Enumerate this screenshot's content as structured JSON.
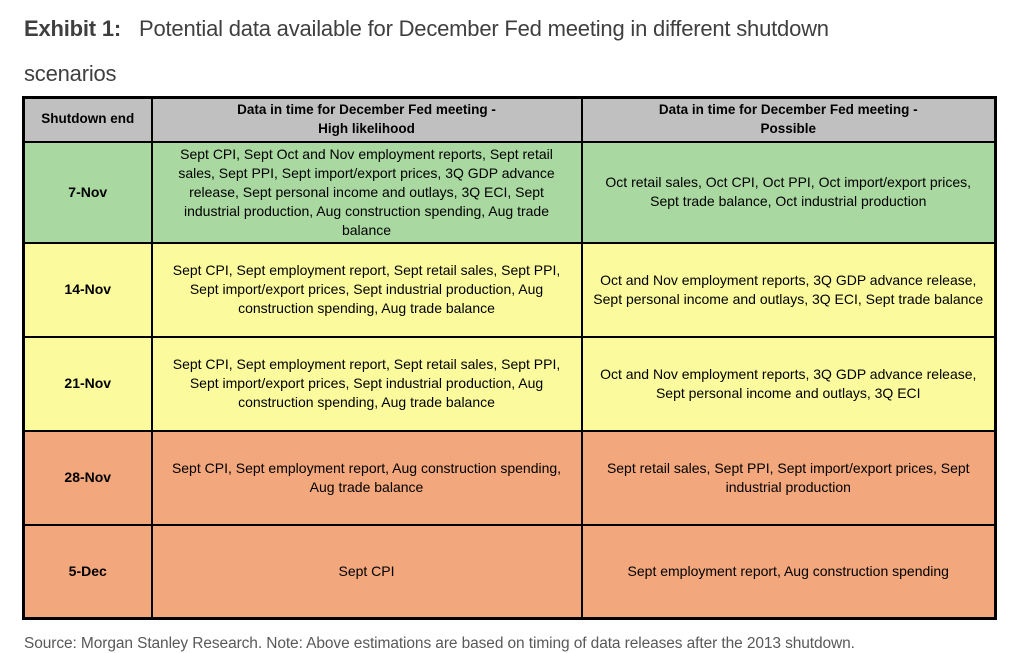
{
  "exhibit": {
    "label": "Exhibit 1:",
    "title": "Potential data available for December Fed meeting in different shutdown scenarios"
  },
  "table": {
    "headers": {
      "col1": "Shutdown end",
      "col2": "Data in time for December Fed meeting -\nHigh likelihood",
      "col3": "Data in time for December Fed meeting -\nPossible"
    },
    "rows": [
      {
        "date": "7-Nov",
        "color": "green",
        "high_likelihood": "Sept CPI, Sept Oct and Nov employment reports, Sept retail sales, Sept PPI, Sept import/export prices, 3Q GDP advance release, Sept personal income and outlays, 3Q ECI, Sept industrial production, Aug construction spending, Aug trade balance",
        "possible": "Oct retail sales, Oct CPI, Oct PPI, Oct import/export prices, Sept trade balance, Oct industrial production"
      },
      {
        "date": "14-Nov",
        "color": "yellow",
        "high_likelihood": "Sept CPI, Sept employment report, Sept retail sales, Sept PPI, Sept import/export prices, Sept industrial production, Aug construction spending, Aug trade balance",
        "possible": "Oct and Nov employment reports, 3Q GDP advance release, Sept personal income and outlays, 3Q ECI, Sept trade balance"
      },
      {
        "date": "21-Nov",
        "color": "yellow",
        "high_likelihood": "Sept CPI, Sept employment report, Sept retail sales, Sept PPI, Sept import/export prices, Sept industrial production, Aug construction spending, Aug trade balance",
        "possible": "Oct and Nov employment reports, 3Q GDP advance release, Sept personal income and outlays, 3Q ECI"
      },
      {
        "date": "28-Nov",
        "color": "orange",
        "high_likelihood": "Sept CPI, Sept employment report, Aug construction spending, Aug trade balance",
        "possible": "Sept retail sales, Sept PPI, Sept import/export prices, Sept industrial production"
      },
      {
        "date": "5-Dec",
        "color": "orange",
        "high_likelihood": "Sept CPI",
        "possible": "Sept employment report, Aug construction spending"
      }
    ]
  },
  "footer": {
    "source_note": "Source: Morgan Stanley Research. Note: Above estimations are based on timing of data releases after the 2013 shutdown."
  },
  "colors": {
    "header_bg": "#c0c0c0",
    "green": "#a9d8a0",
    "yellow": "#fbfb9e",
    "orange": "#f3a77d",
    "border": "#000000",
    "title_text": "#3f3f3f",
    "footer_text": "#595959"
  }
}
